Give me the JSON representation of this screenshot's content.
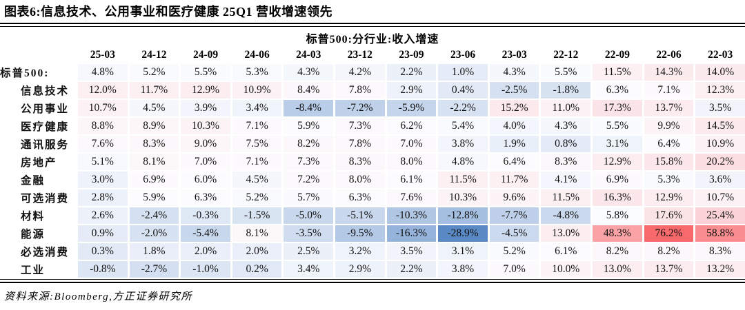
{
  "title": "图表6:信息技术、公用事业和医疗健康 25Q1 营收增速领先",
  "source": "资料来源:Bloomberg,方正证券研究所",
  "chart_data": {
    "type": "heatmap",
    "title": "标普500:分行业:收入增速",
    "unit": "%",
    "value_format": "one_decimal_percent",
    "columns": [
      "25-03",
      "24-12",
      "24-09",
      "24-06",
      "24-03",
      "23-12",
      "23-09",
      "23-06",
      "23-03",
      "22-12",
      "22-09",
      "22-06",
      "22-03"
    ],
    "rows": [
      {
        "label": "标普500:",
        "values": [
          4.8,
          5.2,
          5.5,
          5.3,
          4.3,
          4.2,
          2.2,
          1.0,
          4.3,
          5.5,
          11.5,
          14.3,
          14.0
        ]
      },
      {
        "label": "信息技术",
        "values": [
          12.0,
          11.7,
          12.9,
          10.9,
          8.4,
          7.8,
          2.9,
          0.4,
          -2.5,
          -1.8,
          6.3,
          7.1,
          12.3
        ]
      },
      {
        "label": "公用事业",
        "values": [
          10.7,
          4.5,
          3.9,
          3.4,
          -8.4,
          -7.2,
          -5.9,
          -2.2,
          15.2,
          11.0,
          17.3,
          13.7,
          3.5
        ]
      },
      {
        "label": "医疗健康",
        "values": [
          8.8,
          8.9,
          10.3,
          7.1,
          5.9,
          7.3,
          6.2,
          5.4,
          4.0,
          4.3,
          5.5,
          9.9,
          14.5
        ]
      },
      {
        "label": "通讯服务",
        "values": [
          7.6,
          8.3,
          9.0,
          7.5,
          8.2,
          7.8,
          7.0,
          3.8,
          1.9,
          0.8,
          3.1,
          6.4,
          10.9
        ]
      },
      {
        "label": "房地产",
        "values": [
          5.1,
          8.1,
          7.0,
          7.1,
          7.3,
          8.3,
          8.0,
          4.8,
          6.4,
          8.3,
          12.9,
          15.8,
          20.2
        ]
      },
      {
        "label": "金融",
        "values": [
          3.0,
          6.9,
          6.0,
          4.5,
          7.2,
          8.0,
          6.1,
          11.5,
          11.7,
          4.1,
          6.9,
          5.3,
          3.6
        ]
      },
      {
        "label": "可选消费",
        "values": [
          2.8,
          5.9,
          6.3,
          5.2,
          5.7,
          6.3,
          7.6,
          10.3,
          9.6,
          11.5,
          16.3,
          12.9,
          10.7
        ]
      },
      {
        "label": "材料",
        "values": [
          2.6,
          -2.4,
          -0.3,
          -1.5,
          -5.0,
          -5.1,
          -10.3,
          -12.8,
          -7.7,
          -4.8,
          5.8,
          17.6,
          25.4
        ]
      },
      {
        "label": "能源",
        "values": [
          0.9,
          -2.0,
          -5.4,
          8.1,
          -3.5,
          -9.5,
          -16.3,
          -28.9,
          -4.5,
          13.0,
          48.3,
          76.2,
          58.8
        ]
      },
      {
        "label": "必选消费",
        "values": [
          0.3,
          1.8,
          2.0,
          2.0,
          2.5,
          3.2,
          3.5,
          3.1,
          5.2,
          6.1,
          8.2,
          8.2,
          8.3
        ]
      },
      {
        "label": "工业",
        "values": [
          -0.8,
          -2.7,
          -1.0,
          0.2,
          3.4,
          2.9,
          2.2,
          3.8,
          7.0,
          10.0,
          13.0,
          13.7,
          13.2
        ]
      }
    ],
    "color_scale": {
      "low": "#5A8AC6",
      "mid": "#FCFCFF",
      "high": "#F8696B",
      "midpoint": "median"
    },
    "legend_position": "none",
    "grid": false
  }
}
